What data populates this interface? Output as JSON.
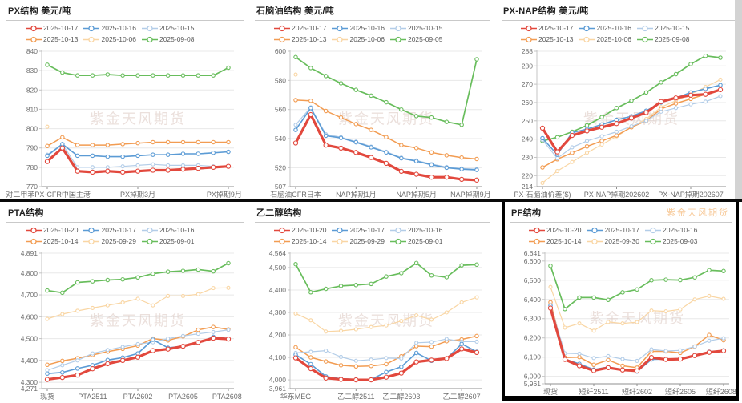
{
  "watermark": "紫金天风期货",
  "colors": {
    "red": "#e2483d",
    "blue": "#5b9bd5",
    "lightblue": "#b3cde8",
    "orange": "#f29c52",
    "lightorange": "#f9d6a4",
    "green": "#68bd5c",
    "grid": "#e8e8e8",
    "y_axis": "#c4c4c4",
    "x_axis": "#8f8f8f",
    "tick_text": "#6e6e6e",
    "highlight_border": "#0a0a0a"
  },
  "chart_data": [
    {
      "type": "line",
      "title": "PX结构 美元/吨",
      "highlight": false,
      "ylim": [
        770,
        840
      ],
      "yticks": [
        770,
        780,
        790,
        800,
        810,
        820,
        830,
        840
      ],
      "x_count": 13,
      "x_tick_labels": [
        {
          "index": 0,
          "label": "对二甲苯PX-CFR中国主港"
        },
        {
          "index": 6,
          "label": "PX掉期3月"
        },
        {
          "index": 12,
          "label": "PX掉期9月"
        }
      ],
      "series": [
        {
          "name": "2025-10-17",
          "color_key": "red",
          "values": [
            783,
            790,
            778,
            777.5,
            778,
            777.5,
            778,
            778.5,
            778.5,
            779,
            779.5,
            780,
            780.5
          ]
        },
        {
          "name": "2025-10-16",
          "color_key": "blue",
          "values": [
            786,
            792,
            786,
            786,
            785.5,
            785.5,
            786,
            786.5,
            786.5,
            787,
            787,
            787.5,
            788
          ]
        },
        {
          "name": "2025-10-15",
          "color_key": "lightblue",
          "values": [
            786.5,
            792,
            780,
            780,
            780,
            780.5,
            781,
            781.5,
            781,
            781,
            781,
            780.5,
            780.5
          ]
        },
        {
          "name": "2025-10-13",
          "color_key": "orange",
          "values": [
            791,
            795.5,
            791.5,
            791.5,
            791.5,
            792,
            792.5,
            793,
            793,
            793,
            793,
            793,
            793
          ]
        },
        {
          "name": "2025-10-06",
          "color_key": "lightorange",
          "values": [
            801,
            null,
            null,
            null,
            null,
            null,
            null,
            null,
            null,
            null,
            null,
            null,
            null
          ]
        },
        {
          "name": "2025-09-08",
          "color_key": "green",
          "values": [
            833,
            829,
            827.5,
            827.5,
            828,
            827.5,
            827.5,
            827.5,
            827.5,
            827.5,
            827.5,
            827.5,
            831.5
          ]
        }
      ]
    },
    {
      "type": "line",
      "title": "石脑油结构 美元/吨",
      "highlight": false,
      "ylim": [
        507,
        600
      ],
      "yticks": [
        507,
        520,
        540,
        560,
        580,
        600
      ],
      "x_count": 13,
      "x_tick_labels": [
        {
          "index": 0,
          "label": "石脑油CFR日本"
        },
        {
          "index": 4,
          "label": "NAP掉期1月"
        },
        {
          "index": 8,
          "label": "NAP掉期5月"
        },
        {
          "index": 12,
          "label": "NAP掉期9月"
        }
      ],
      "series": [
        {
          "name": "2025-10-17",
          "color_key": "red",
          "values": [
            537,
            556.5,
            535.5,
            533.5,
            530.5,
            527,
            523,
            517.5,
            515.5,
            513.5,
            513.5,
            512,
            511.5
          ]
        },
        {
          "name": "2025-10-16",
          "color_key": "blue",
          "values": [
            546,
            561,
            542,
            540.5,
            537.5,
            534,
            530.5,
            526.5,
            524.5,
            522,
            520,
            519,
            518.5
          ]
        },
        {
          "name": "2025-10-15",
          "color_key": "lightblue",
          "values": [
            549.5,
            561.5,
            543,
            541,
            538,
            534.5,
            531,
            527,
            525,
            522.5,
            520.5,
            519.5,
            519
          ]
        },
        {
          "name": "2025-10-13",
          "color_key": "orange",
          "values": [
            566.5,
            566,
            559,
            554.5,
            550,
            546,
            541,
            535.5,
            533.5,
            530.5,
            528.5,
            527,
            526
          ]
        },
        {
          "name": "2025-10-06",
          "color_key": "lightorange",
          "values": [
            584,
            null,
            null,
            null,
            null,
            null,
            null,
            null,
            null,
            null,
            null,
            null,
            null
          ]
        },
        {
          "name": "2025-09-05",
          "color_key": "green",
          "values": [
            596,
            588.5,
            583,
            578,
            573.5,
            569.5,
            565,
            560,
            555.5,
            554.5,
            551.5,
            549.5,
            594.5
          ]
        }
      ]
    },
    {
      "type": "line",
      "title": "PX-NAP结构 美元/吨",
      "highlight": false,
      "ylim": [
        214,
        288
      ],
      "yticks": [
        214,
        220,
        230,
        240,
        250,
        260,
        270,
        280,
        288
      ],
      "x_count": 13,
      "x_tick_labels": [
        {
          "index": 0,
          "label": "PX-石脑油价差($)"
        },
        {
          "index": 5,
          "label": "PX-NAP掉期202602"
        },
        {
          "index": 10,
          "label": "PX-NAP掉期202607"
        }
      ],
      "series": [
        {
          "name": "2025-10-17",
          "color_key": "red",
          "values": [
            246,
            233,
            242,
            244.5,
            246.5,
            248.5,
            251.5,
            254.5,
            260.5,
            262.5,
            264,
            264.5,
            267
          ]
        },
        {
          "name": "2025-10-16",
          "color_key": "blue",
          "values": [
            240.5,
            231.5,
            243.5,
            245.5,
            248,
            250.5,
            252.5,
            255.5,
            260,
            262.5,
            265.5,
            267.5,
            269.5
          ]
        },
        {
          "name": "2025-10-15",
          "color_key": "lightblue",
          "values": [
            239.5,
            229.5,
            235.5,
            239,
            241.5,
            244,
            247,
            250,
            255,
            257,
            259,
            260.5,
            263.5
          ]
        },
        {
          "name": "2025-10-13",
          "color_key": "orange",
          "values": [
            224.5,
            229,
            232.5,
            236,
            239,
            242,
            246.5,
            250,
            256.5,
            259.5,
            262,
            264.5,
            267
          ]
        },
        {
          "name": "2025-10-06",
          "color_key": "lightorange",
          "values": [
            216,
            222.5,
            227.5,
            232.5,
            237,
            241.5,
            246.5,
            251,
            257.5,
            261,
            264.5,
            268.5,
            272.5
          ]
        },
        {
          "name": "2025-09-08",
          "color_key": "green",
          "values": [
            239,
            241,
            244,
            247.5,
            252,
            257,
            261,
            265.5,
            271,
            275.5,
            281,
            285.5,
            284.5
          ]
        }
      ]
    },
    {
      "type": "line",
      "title": "PTA结构",
      "highlight": false,
      "ylim": [
        4271,
        4891
      ],
      "yticks": [
        4271,
        4300,
        4400,
        4500,
        4600,
        4700,
        4800,
        4891
      ],
      "x_count": 13,
      "x_tick_labels": [
        {
          "index": 0,
          "label": "现货"
        },
        {
          "index": 3,
          "label": "PTA2511"
        },
        {
          "index": 6,
          "label": "PTA2602"
        },
        {
          "index": 9,
          "label": "PTA2605"
        },
        {
          "index": 12,
          "label": "PTA2608"
        }
      ],
      "series": [
        {
          "name": "2025-10-20",
          "color_key": "red",
          "values": [
            4313,
            4322,
            4333,
            4362,
            4385,
            4400,
            4415,
            4445,
            4452,
            4465,
            4483,
            4502,
            4498
          ]
        },
        {
          "name": "2025-10-17",
          "color_key": "blue",
          "values": [
            4340,
            4345,
            4363,
            4378,
            4402,
            4413,
            4432,
            4495,
            4458,
            4465,
            4480,
            4508,
            4500
          ]
        },
        {
          "name": "2025-10-16",
          "color_key": "lightblue",
          "values": [
            4355,
            4378,
            4400,
            4432,
            4448,
            4462,
            4475,
            4483,
            4500,
            4512,
            4522,
            4530,
            4540
          ]
        },
        {
          "name": "2025-10-14",
          "color_key": "orange",
          "values": [
            4380,
            4398,
            4410,
            4425,
            4440,
            4453,
            4468,
            4500,
            4492,
            4510,
            4540,
            4553,
            4542
          ]
        },
        {
          "name": "2025-09-29",
          "color_key": "lightorange",
          "values": [
            4590,
            4612,
            4627,
            4640,
            4652,
            4665,
            4682,
            4652,
            4695,
            4695,
            4703,
            4731,
            4732
          ]
        },
        {
          "name": "2025-09-01",
          "color_key": "green",
          "values": [
            4720,
            4710,
            4757,
            4762,
            4768,
            4771,
            4780,
            4797,
            4806,
            4810,
            4816,
            4808,
            4845
          ]
        }
      ]
    },
    {
      "type": "line",
      "title": "乙二醇结构",
      "highlight": false,
      "ylim": [
        3961,
        4564
      ],
      "yticks": [
        3961,
        4000,
        4100,
        4200,
        4300,
        4400,
        4500,
        4564
      ],
      "x_count": 13,
      "x_tick_labels": [
        {
          "index": 0,
          "label": "华东MEG"
        },
        {
          "index": 4,
          "label": "乙二醇2511"
        },
        {
          "index": 7,
          "label": "乙二醇2603"
        },
        {
          "index": 11,
          "label": "乙二醇2607"
        }
      ],
      "series": [
        {
          "name": "2025-10-20",
          "color_key": "red",
          "values": [
            4098,
            4050,
            4008,
            4002,
            4000,
            4000,
            4012,
            4030,
            4080,
            4088,
            4095,
            4138,
            4122
          ]
        },
        {
          "name": "2025-10-17",
          "color_key": "blue",
          "values": [
            4112,
            4070,
            4015,
            4005,
            4002,
            4002,
            4035,
            4058,
            4120,
            4085,
            4095,
            4160,
            4125
          ]
        },
        {
          "name": "2025-10-16",
          "color_key": "lightblue",
          "values": [
            4120,
            4125,
            4130,
            4102,
            4085,
            4090,
            4097,
            4095,
            4165,
            4168,
            4182,
            4170,
            4170
          ]
        },
        {
          "name": "2025-10-14",
          "color_key": "orange",
          "values": [
            4145,
            4100,
            4082,
            4065,
            4060,
            4062,
            4070,
            4105,
            4150,
            4148,
            4172,
            4180,
            4195
          ]
        },
        {
          "name": "2025-09-29",
          "color_key": "lightorange",
          "values": [
            4295,
            4265,
            4215,
            4218,
            4225,
            4235,
            4242,
            4262,
            4287,
            4268,
            4300,
            4345,
            4367
          ]
        },
        {
          "name": "2025-09-01",
          "color_key": "green",
          "values": [
            4515,
            4390,
            4405,
            4418,
            4422,
            4427,
            4460,
            4475,
            4520,
            4465,
            4457,
            4510,
            4513
          ]
        }
      ]
    },
    {
      "type": "line",
      "title": "PF结构",
      "highlight": true,
      "ylim": [
        5961,
        6641
      ],
      "yticks": [
        5961,
        6000,
        6100,
        6200,
        6300,
        6400,
        6500,
        6600,
        6641
      ],
      "x_count": 13,
      "x_tick_labels": [
        {
          "index": 0,
          "label": "现货"
        },
        {
          "index": 3,
          "label": "短纤2511"
        },
        {
          "index": 6,
          "label": "短纤2602"
        },
        {
          "index": 9,
          "label": "短纤2605"
        },
        {
          "index": 12,
          "label": "短纤2608"
        }
      ],
      "series": [
        {
          "name": "2025-10-20",
          "color_key": "red",
          "values": [
            6355,
            6088,
            6055,
            6030,
            6045,
            6033,
            6028,
            6098,
            6088,
            6090,
            6108,
            6125,
            6133
          ]
        },
        {
          "name": "2025-10-17",
          "color_key": "blue",
          "values": [
            6368,
            6090,
            6065,
            6035,
            6048,
            6035,
            6025,
            6088,
            6090,
            6092,
            6110,
            6128,
            6135
          ]
        },
        {
          "name": "2025-10-16",
          "color_key": "lightblue",
          "values": [
            6370,
            6120,
            6118,
            6095,
            6105,
            6090,
            6080,
            6140,
            6132,
            6135,
            6155,
            6185,
            6198
          ]
        },
        {
          "name": "2025-10-14",
          "color_key": "orange",
          "values": [
            6385,
            6098,
            6100,
            6060,
            6085,
            6055,
            6045,
            6130,
            6130,
            6122,
            6155,
            6215,
            6188
          ]
        },
        {
          "name": "2025-09-30",
          "color_key": "lightorange",
          "values": [
            6465,
            6253,
            6275,
            6237,
            6283,
            6275,
            6282,
            6342,
            6338,
            6348,
            6400,
            6418,
            6403
          ]
        },
        {
          "name": "2025-09-03",
          "color_key": "green",
          "values": [
            6575,
            6350,
            6410,
            6410,
            6398,
            6437,
            6452,
            6500,
            6503,
            6501,
            6515,
            6552,
            6548
          ]
        }
      ]
    }
  ]
}
